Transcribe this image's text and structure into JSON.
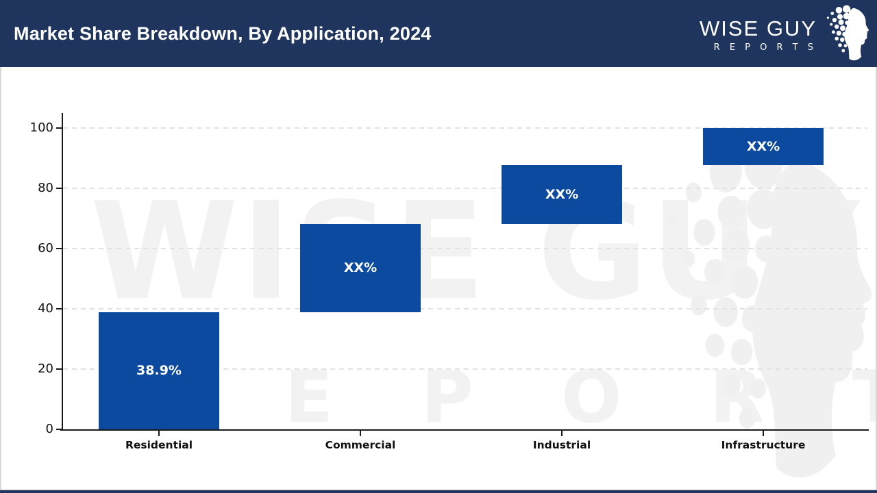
{
  "header": {
    "title": "Market Share Breakdown, By Application, 2024",
    "logo": {
      "line1": "WISE GUY",
      "line2": "R E P O R T S"
    }
  },
  "watermark": {
    "line1": "WISE GUY",
    "line2": "R E P O R T S"
  },
  "icons": {
    "logo_face": "wiseguy-dotted-head-icon"
  },
  "colors": {
    "header_bg": "#1f355e",
    "footer_bg": "#1f355e",
    "bar": "#0b4a9e",
    "bar_label_text": "#ffffff",
    "watermark": "#f2f2f2",
    "gridline": "#e2e2e2",
    "axis": "#1a1a1a",
    "tick_label": "#111111",
    "frame_border": "#d8d8d8"
  },
  "chart_data": {
    "type": "bar",
    "subtype": "floating-segment waterfall of market share",
    "title": "Market Share Breakdown, By Application, 2024",
    "categories": [
      "Residential",
      "Commercial",
      "Industrial",
      "Infrastructure"
    ],
    "series": [
      {
        "name": "Market share (%)",
        "segments": [
          {
            "category": "Residential",
            "start": 0,
            "end": 38.9,
            "label": "38.9%"
          },
          {
            "category": "Commercial",
            "start": 38.9,
            "end": 68.2,
            "label": "XX%"
          },
          {
            "category": "Industrial",
            "start": 68.2,
            "end": 87.7,
            "label": "XX%"
          },
          {
            "category": "Infrastructure",
            "start": 87.7,
            "end": 100,
            "label": "XX%"
          }
        ]
      }
    ],
    "xlabel": "",
    "ylabel": "",
    "ylim": [
      0,
      100
    ],
    "yticks": [
      0,
      20,
      40,
      60,
      80,
      100
    ],
    "grid": "horizontal dashed",
    "legend": "none"
  }
}
